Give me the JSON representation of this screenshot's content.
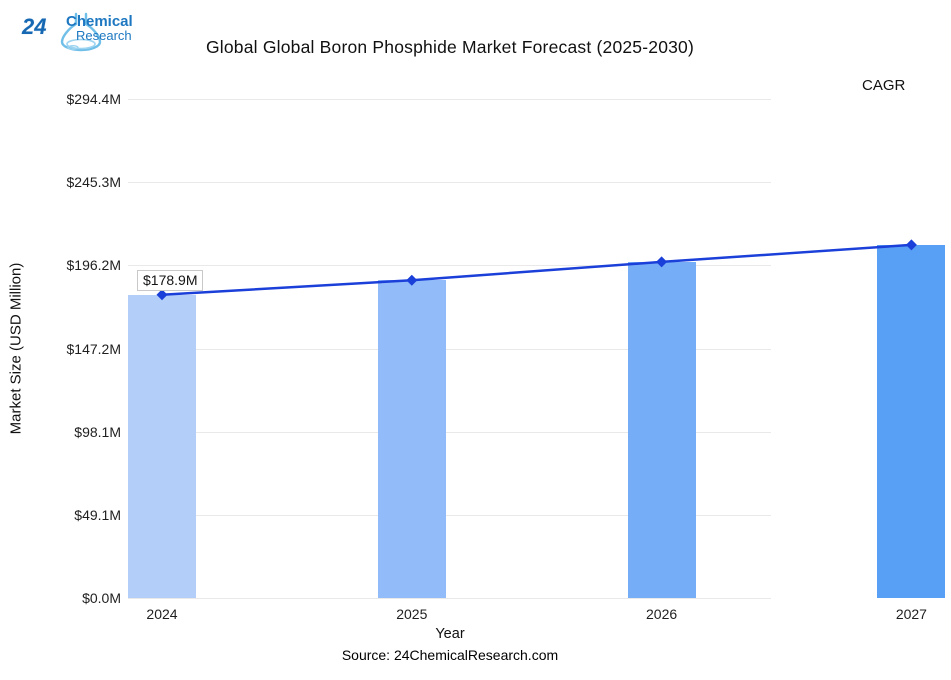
{
  "logo": {
    "number": "24",
    "word1": "Chemical",
    "word2": "Research"
  },
  "header": {
    "title": "Global Global Boron Phosphide Market Forecast (2025-2030)",
    "cagr_label": "CAGR"
  },
  "axes": {
    "y_title": "Market Size (USD Million)",
    "x_title": "Year"
  },
  "footer": {
    "source": "Source: 24ChemicalResearch.com"
  },
  "chart_data": {
    "type": "bar",
    "line_overlay": true,
    "title": "Global Global Boron Phosphide Market Forecast (2025-2030)",
    "xlabel": "Year",
    "ylabel": "Market Size (USD Million)",
    "categories": [
      "2024",
      "2025",
      "2026",
      "2027"
    ],
    "series": [
      {
        "name": "Market Size (USD Million)",
        "values": [
          178.9,
          187.5,
          198.3,
          208.3
        ]
      }
    ],
    "y_ticks": [
      "$0.0M",
      "$49.1M",
      "$98.1M",
      "$147.2M",
      "$196.2M",
      "$245.3M",
      "$294.4M"
    ],
    "y_tick_values": [
      0,
      49.1,
      98.1,
      147.2,
      196.2,
      245.3,
      294.4
    ],
    "ylim": [
      0,
      294.4
    ],
    "grid": true,
    "legend": "none",
    "data_label": {
      "category": "2024",
      "text": "$178.9M"
    },
    "colors": {
      "bars": [
        "#b3cef9",
        "#92bcf9",
        "#76adf7",
        "#58a0f5"
      ],
      "line": "#1b3fd9",
      "grid": "#e9e9e9"
    }
  }
}
